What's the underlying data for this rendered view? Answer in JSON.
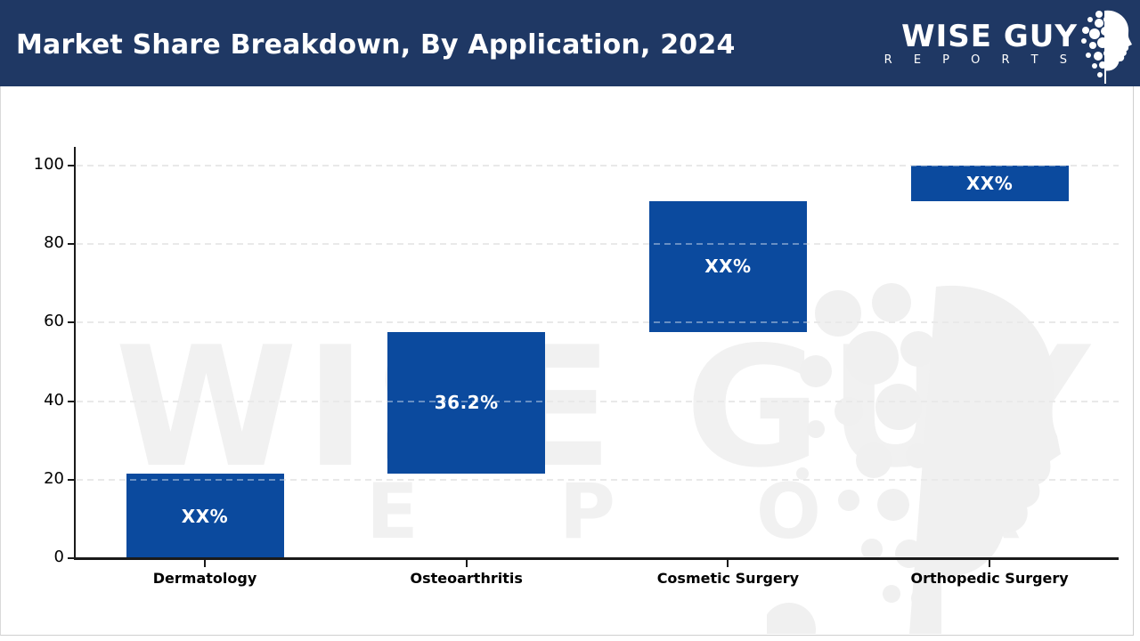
{
  "header": {
    "title": "Market Share Breakdown, By Application, 2024",
    "bg_color": "#1f3864",
    "logo": {
      "line1": "WISE GUY",
      "line2": "REPORTS"
    }
  },
  "watermark": {
    "line1": "WISE GUY",
    "line2": "REPORTS"
  },
  "chart_data": {
    "type": "bar",
    "subtype": "waterfall-stacked-segments",
    "title": "Market Share Breakdown, By Application, 2024",
    "categories": [
      "Dermatology",
      "Osteoarthritis",
      "Cosmetic Surgery",
      "Orthopedic Surgery"
    ],
    "segments": [
      {
        "category": "Dermatology",
        "start": 0,
        "end": 21.5,
        "size": 21.5,
        "label": "XX%"
      },
      {
        "category": "Osteoarthritis",
        "start": 21.5,
        "end": 57.7,
        "size": 36.2,
        "label": "36.2%"
      },
      {
        "category": "Cosmetic Surgery",
        "start": 57.7,
        "end": 91.0,
        "size": 33.3,
        "label": "XX%"
      },
      {
        "category": "Orthopedic Surgery",
        "start": 91.0,
        "end": 100,
        "size": 9.0,
        "label": "XX%"
      }
    ],
    "yticks": [
      0,
      20,
      40,
      60,
      80,
      100
    ],
    "ylim": [
      0,
      104
    ],
    "xlabel": "",
    "ylabel": "",
    "bar_color": "#0b4a9e",
    "grid": "dashed-horizontal",
    "legend_position": "none"
  }
}
